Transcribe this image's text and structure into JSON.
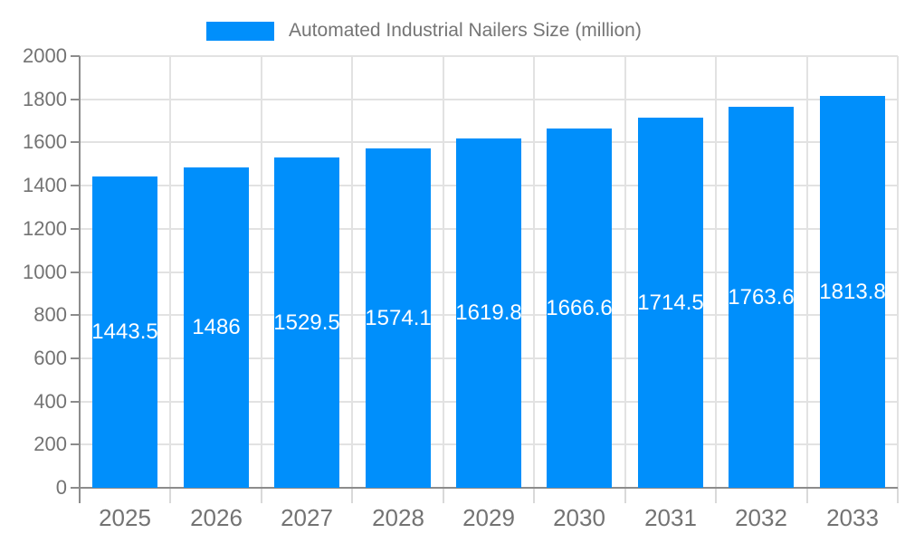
{
  "chart_data": {
    "type": "bar",
    "title": "Automated Industrial Nailers Size (million)",
    "legend_position": "top",
    "categories": [
      "2025",
      "2026",
      "2027",
      "2028",
      "2029",
      "2030",
      "2031",
      "2032",
      "2033"
    ],
    "series": [
      {
        "name": "Automated Industrial Nailers Size (million)",
        "values": [
          1443.5,
          1486,
          1529.5,
          1574.1,
          1619.8,
          1666.6,
          1714.5,
          1763.6,
          1813.8
        ],
        "value_labels": [
          "1443.5",
          "1486",
          "1529.5",
          "1574.1",
          "1619.8",
          "1666.6",
          "1714.5",
          "1763.6",
          "1813.8"
        ]
      }
    ],
    "xlabel": "",
    "ylabel": "",
    "ylim": [
      0,
      2000
    ],
    "yticks": [
      0,
      200,
      400,
      600,
      800,
      1000,
      1200,
      1400,
      1600,
      1800,
      2000
    ],
    "ytick_labels": [
      "0",
      "200",
      "400",
      "600",
      "800",
      "1000",
      "1200",
      "1400",
      "1600",
      "1800",
      "2000"
    ],
    "grid": true
  },
  "colors": {
    "bar": "#008FFB",
    "bar_value_text": "#ffffff",
    "grid_line": "#e2e2e2",
    "axis_line": "#8c8c8c",
    "minor_tick_line": "#d9d9d9",
    "axis_text": "#737373",
    "title_text": "#757575",
    "background": "#ffffff"
  }
}
